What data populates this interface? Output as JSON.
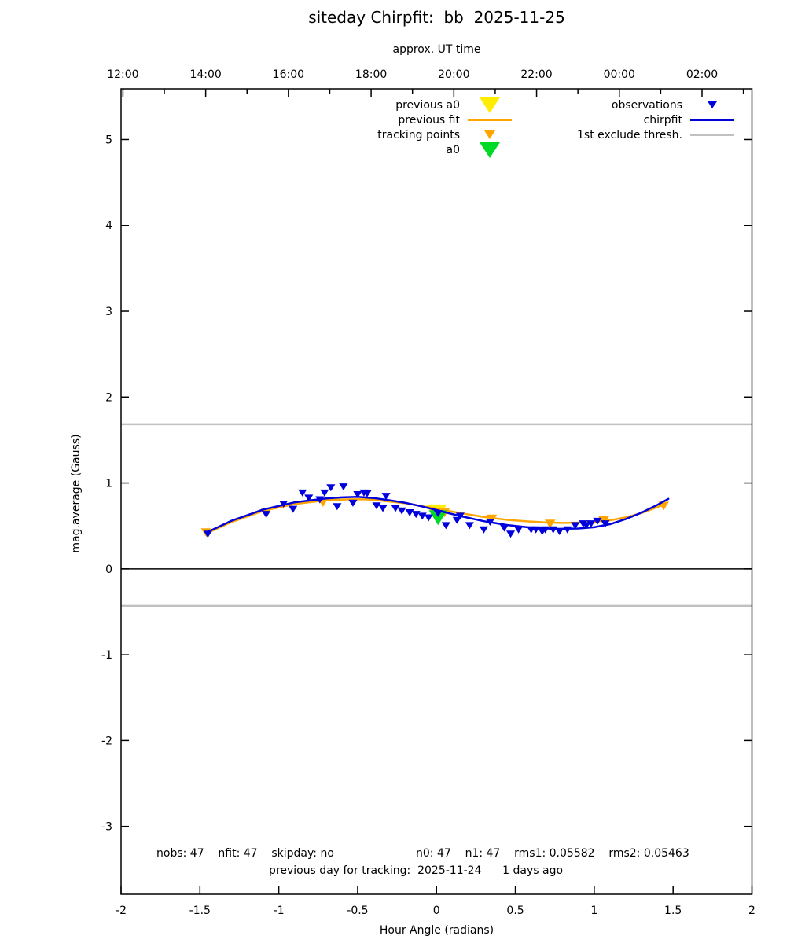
{
  "title": "siteday Chirpfit:  bb  2025-11-25",
  "labels": {
    "x2": "approx. UT time",
    "y": "mag.average (Gauss)",
    "x": "Hour Angle (radians)"
  },
  "legend": {
    "left": [
      {
        "label": "previous a0",
        "marker": "triangle-large",
        "color": "#ffee00"
      },
      {
        "label": "previous fit",
        "marker": "line",
        "color": "#ffa500"
      },
      {
        "label": "tracking points",
        "marker": "triangle-small",
        "color": "#ffa500"
      },
      {
        "label": "a0",
        "marker": "triangle-large",
        "color": "#00d926"
      }
    ],
    "right": [
      {
        "label": "observations",
        "marker": "triangle-tiny",
        "color": "#0000dd"
      },
      {
        "label": "chirpfit",
        "marker": "line",
        "color": "#0000dd"
      },
      {
        "label": "1st exclude thresh.",
        "marker": "line",
        "color": "#c0c0c0"
      }
    ]
  },
  "stats": {
    "line1_left": "nobs: 47    nfit: 47    skipday: no",
    "line1_right": "n0: 47    n1: 47    rms1: 0.05582    rms2: 0.05463",
    "line2": "previous day for tracking:  2025-11-24      1 days ago"
  },
  "colors": {
    "observations": "#0000dd",
    "chirpfit": "#0000dd",
    "previous_fit": "#ffa500",
    "tracking_points": "#ffa500",
    "previous_a0": "#ffee00",
    "a0": "#00d926",
    "exclude_threshold": "#c0c0c0",
    "axis": "#000000"
  },
  "chart_data": {
    "type": "scatter",
    "title": "siteday Chirpfit:  bb  2025-11-25",
    "xlabel": "Hour Angle (radians)",
    "x2label": "approx. UT time",
    "ylabel": "mag.average (Gauss)",
    "xlim": [
      -2,
      2
    ],
    "ylim": [
      -3.79,
      5.59
    ],
    "x_ticks": [
      -2,
      -1.5,
      -1,
      -0.5,
      0,
      0.5,
      1,
      1.5,
      2
    ],
    "y_ticks": [
      5,
      4,
      3,
      2,
      1,
      0,
      -1,
      -2,
      -3
    ],
    "x2_ticks": {
      "labels": [
        "12:00",
        "14:00",
        "16:00",
        "18:00",
        "20:00",
        "22:00",
        "00:00",
        "02:00"
      ],
      "first_x": -1.988,
      "step_x": 0.5245,
      "minor_offset": 0.2622
    },
    "grid": false,
    "legend_position": "top-inside",
    "zero_line_y": 0,
    "exclude_thresholds": [
      1.684,
      -0.43
    ],
    "series": [
      {
        "name": "previous a0",
        "type": "points",
        "marker": "triangle-down",
        "size": 21,
        "color": "#ffee00",
        "points": [
          [
            0.0,
            0.67
          ]
        ]
      },
      {
        "name": "previous fit",
        "type": "line",
        "width": 2.5,
        "color": "#ffa500",
        "points": [
          [
            -1.45,
            0.42
          ],
          [
            -1.3,
            0.545
          ],
          [
            -1.1,
            0.675
          ],
          [
            -0.9,
            0.755
          ],
          [
            -0.7,
            0.8
          ],
          [
            -0.55,
            0.81
          ],
          [
            -0.45,
            0.81
          ],
          [
            -0.4,
            0.805
          ],
          [
            -0.2,
            0.765
          ],
          [
            0,
            0.7
          ],
          [
            0.15,
            0.65
          ],
          [
            0.3,
            0.605
          ],
          [
            0.45,
            0.57
          ],
          [
            0.6,
            0.55
          ],
          [
            0.7,
            0.54
          ],
          [
            0.8,
            0.535
          ],
          [
            0.95,
            0.54
          ],
          [
            1.1,
            0.565
          ],
          [
            1.2,
            0.6
          ],
          [
            1.3,
            0.65
          ],
          [
            1.4,
            0.72
          ],
          [
            1.45,
            0.755
          ]
        ]
      },
      {
        "name": "tracking points",
        "type": "points",
        "marker": "triangle-down",
        "size": 11,
        "color": "#ffa500",
        "points": [
          [
            -1.46,
            0.43
          ],
          [
            -1.08,
            0.66
          ],
          [
            -0.72,
            0.78
          ],
          [
            0.05,
            0.66
          ],
          [
            0.35,
            0.59
          ],
          [
            0.72,
            0.53
          ],
          [
            1.06,
            0.57
          ],
          [
            1.44,
            0.74
          ]
        ]
      },
      {
        "name": "a0",
        "type": "points",
        "marker": "triangle-down",
        "size": 19,
        "color": "#00d926",
        "points": [
          [
            0.01,
            0.61
          ]
        ]
      },
      {
        "name": "observations",
        "type": "points",
        "marker": "triangle-down",
        "size": 9,
        "color": "#0000dd",
        "points": [
          [
            -1.45,
            0.41
          ],
          [
            -1.08,
            0.64
          ],
          [
            -0.97,
            0.76
          ],
          [
            -0.91,
            0.7
          ],
          [
            -0.85,
            0.89
          ],
          [
            -0.81,
            0.83
          ],
          [
            -0.74,
            0.81
          ],
          [
            -0.71,
            0.89
          ],
          [
            -0.67,
            0.95
          ],
          [
            -0.63,
            0.73
          ],
          [
            -0.59,
            0.96
          ],
          [
            -0.53,
            0.77
          ],
          [
            -0.5,
            0.87
          ],
          [
            -0.46,
            0.89
          ],
          [
            -0.44,
            0.88
          ],
          [
            -0.38,
            0.74
          ],
          [
            -0.34,
            0.71
          ],
          [
            -0.32,
            0.85
          ],
          [
            -0.26,
            0.71
          ],
          [
            -0.22,
            0.68
          ],
          [
            -0.17,
            0.66
          ],
          [
            -0.13,
            0.64
          ],
          [
            -0.09,
            0.62
          ],
          [
            -0.05,
            0.6
          ],
          [
            0.01,
            0.65
          ],
          [
            0.06,
            0.51
          ],
          [
            0.13,
            0.57
          ],
          [
            0.15,
            0.62
          ],
          [
            0.21,
            0.51
          ],
          [
            0.3,
            0.46
          ],
          [
            0.34,
            0.55
          ],
          [
            0.43,
            0.48
          ],
          [
            0.47,
            0.41
          ],
          [
            0.52,
            0.46
          ],
          [
            0.6,
            0.46
          ],
          [
            0.63,
            0.46
          ],
          [
            0.67,
            0.44
          ],
          [
            0.69,
            0.46
          ],
          [
            0.74,
            0.46
          ],
          [
            0.78,
            0.44
          ],
          [
            0.83,
            0.46
          ],
          [
            0.88,
            0.51
          ],
          [
            0.93,
            0.53
          ],
          [
            0.95,
            0.51
          ],
          [
            0.98,
            0.53
          ],
          [
            1.02,
            0.56
          ],
          [
            1.07,
            0.53
          ]
        ]
      },
      {
        "name": "chirpfit",
        "type": "line",
        "width": 2.5,
        "color": "#0000dd",
        "points": [
          [
            -1.45,
            0.43
          ],
          [
            -1.3,
            0.56
          ],
          [
            -1.1,
            0.69
          ],
          [
            -0.9,
            0.775
          ],
          [
            -0.7,
            0.82
          ],
          [
            -0.6,
            0.832
          ],
          [
            -0.5,
            0.838
          ],
          [
            -0.4,
            0.825
          ],
          [
            -0.3,
            0.8
          ],
          [
            -0.2,
            0.77
          ],
          [
            -0.1,
            0.73
          ],
          [
            0,
            0.685
          ],
          [
            0.15,
            0.615
          ],
          [
            0.3,
            0.555
          ],
          [
            0.45,
            0.51
          ],
          [
            0.6,
            0.48
          ],
          [
            0.75,
            0.465
          ],
          [
            0.9,
            0.47
          ],
          [
            1,
            0.485
          ],
          [
            1.1,
            0.52
          ],
          [
            1.2,
            0.58
          ],
          [
            1.3,
            0.655
          ],
          [
            1.4,
            0.745
          ],
          [
            1.47,
            0.815
          ]
        ]
      }
    ],
    "stats_text": {
      "nobs": 47,
      "nfit": 47,
      "skipday": "no",
      "n0": 47,
      "n1": 47,
      "rms1": 0.05582,
      "rms2": 0.05463,
      "previous_day_for_tracking": "2025-11-24",
      "days_ago": "1 days ago"
    }
  }
}
